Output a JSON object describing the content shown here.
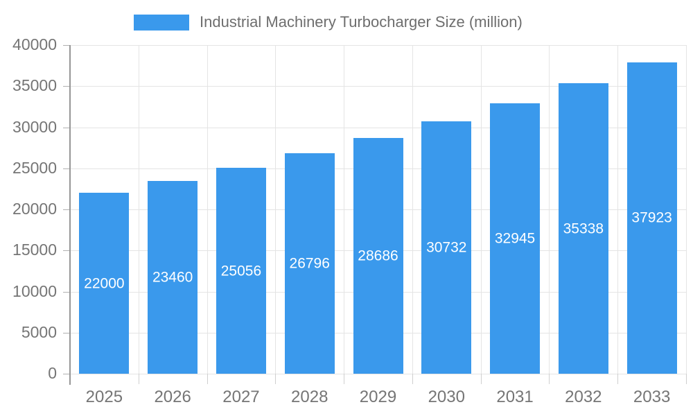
{
  "legend": {
    "label": "Industrial Machinery Turbocharger Size (million)"
  },
  "chart_data": {
    "type": "bar",
    "title": "Industrial Machinery Turbocharger Size (million)",
    "categories": [
      "2025",
      "2026",
      "2027",
      "2028",
      "2029",
      "2030",
      "2031",
      "2032",
      "2033"
    ],
    "values": [
      22000,
      23460,
      25056,
      26796,
      28686,
      30732,
      32945,
      35338,
      37923
    ],
    "xlabel": "",
    "ylabel": "",
    "ylim": [
      0,
      40000
    ],
    "yticks": [
      0,
      5000,
      10000,
      15000,
      20000,
      25000,
      30000,
      35000,
      40000
    ],
    "grid": true,
    "legend_position": "top",
    "value_labels": "inside-center-white",
    "colors": {
      "bar": "#3a99ec",
      "grid": "#e4e4e4",
      "y_axis_line": "#969696",
      "tick_label": "#757575",
      "legend_label": "#6e6e6e",
      "value_label": "#ffffff",
      "background": "#ffffff"
    }
  }
}
